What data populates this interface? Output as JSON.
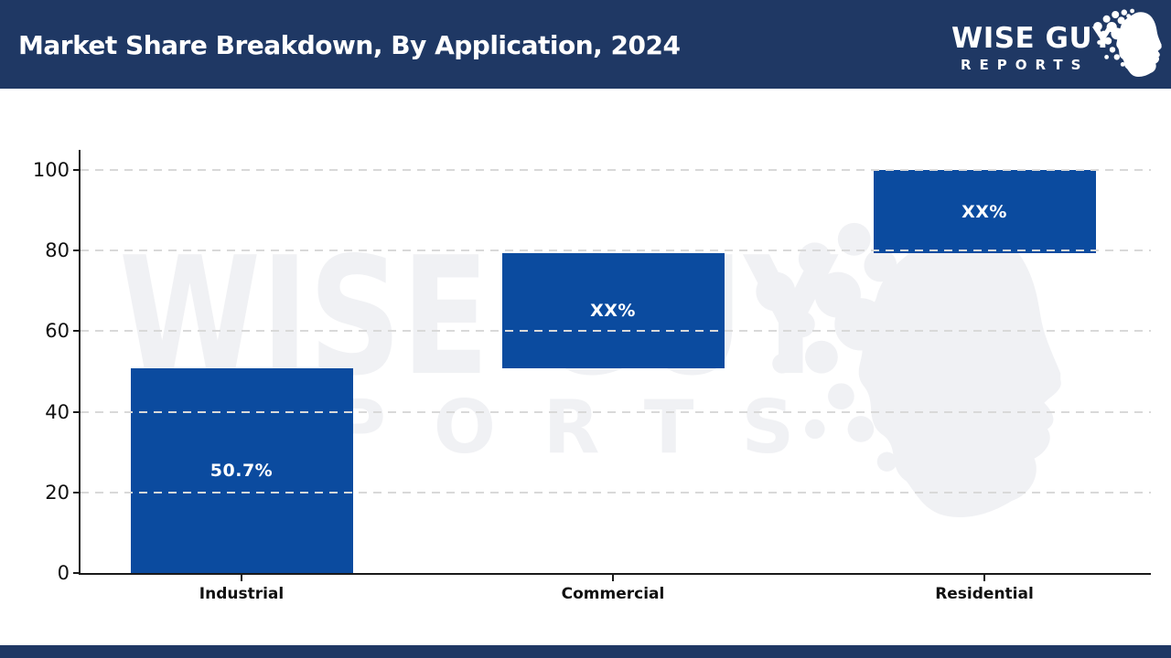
{
  "header": {
    "title": "Market Share Breakdown, By Application, 2024",
    "logo": {
      "primary": "WISE GUY",
      "secondary": "REPORTS"
    }
  },
  "watermark": {
    "line1": "WISE GUY",
    "line2": "REPORTS"
  },
  "chart_data": {
    "type": "bar",
    "subtype": "floating-segment-waterfall",
    "title": "Market Share Breakdown, By Application, 2024",
    "categories": [
      "Industrial",
      "Commercial",
      "Residential"
    ],
    "segments": [
      {
        "category": "Industrial",
        "start": 0,
        "end": 50.7,
        "label": "50.7%"
      },
      {
        "category": "Commercial",
        "start": 50.7,
        "end": 79.3,
        "label": "XX%"
      },
      {
        "category": "Residential",
        "start": 79.3,
        "end": 100,
        "label": "XX%"
      }
    ],
    "yticks": [
      0,
      20,
      40,
      60,
      80,
      100
    ],
    "ylim": [
      0,
      105
    ],
    "xlabel": "",
    "ylabel": "",
    "grid": "dashed-horizontal",
    "legend": "none"
  },
  "colors": {
    "header_bg": "#1f3864",
    "footer_bg": "#1f3864",
    "bar": "#0b4b9f",
    "bar_label": "#ffffff",
    "grid": "#d9d9d9",
    "axis": "#1a1a1a",
    "watermark": "#f0f1f4",
    "title_text": "#ffffff"
  }
}
